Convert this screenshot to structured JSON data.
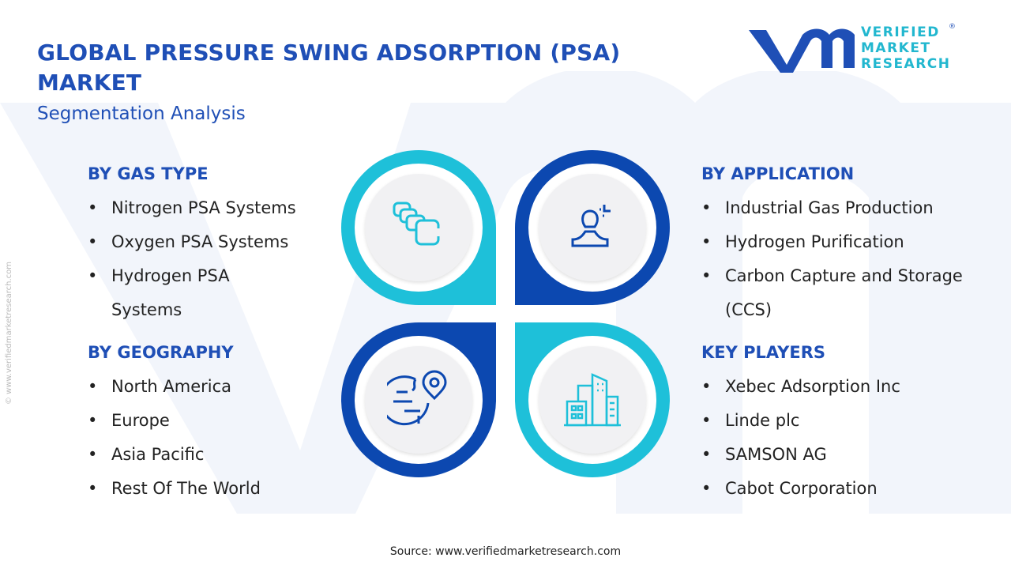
{
  "header": {
    "title": "GLOBAL PRESSURE SWING ADSORPTION (PSA) MARKET",
    "subtitle": "Segmentation Analysis"
  },
  "logo": {
    "line1": "VERIFIED",
    "line2": "MARKET",
    "line3": "RESEARCH",
    "registered": "®"
  },
  "watermark": "© www.verifiedmarketresearch.com",
  "colors": {
    "dark_blue": "#0c48b0",
    "cyan": "#1ec0d9",
    "title": "#1f4fb6"
  },
  "segments": {
    "gas_type": {
      "heading": "BY GAS TYPE",
      "items": [
        "Nitrogen PSA Systems",
        "Oxygen PSA Systems",
        "Hydrogen PSA Systems"
      ]
    },
    "geography": {
      "heading": "BY GEOGRAPHY",
      "items": [
        "North America",
        "Europe",
        "Asia Pacific",
        "Rest Of The World"
      ]
    },
    "application": {
      "heading": "BY APPLICATION",
      "items": [
        "Industrial Gas Production",
        "Hydrogen Purification",
        "Carbon Capture and Storage (CCS)"
      ]
    },
    "key_players": {
      "heading": "KEY PLAYERS",
      "items": [
        "Xebec Adsorption Inc",
        "Linde plc",
        "SAMSON AG",
        "Cabot Corporation"
      ]
    }
  },
  "source": "Source: www.verifiedmarketresearch.com"
}
